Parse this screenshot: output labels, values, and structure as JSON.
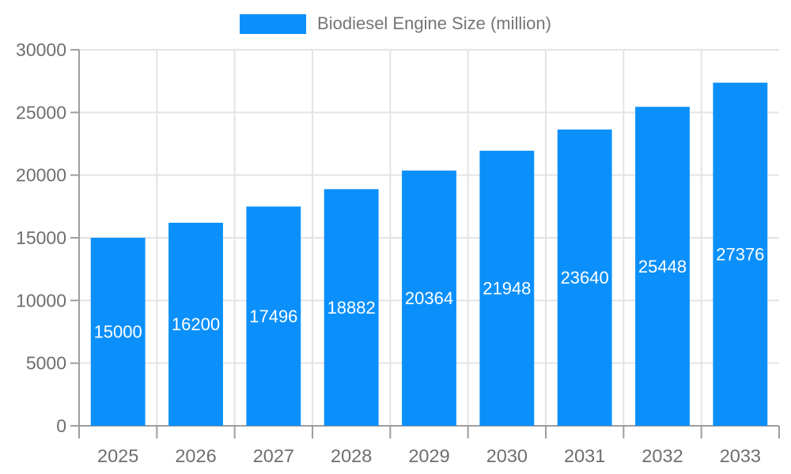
{
  "legend": {
    "label": "Biodiesel Engine Size (million)"
  },
  "chart_data": {
    "type": "bar",
    "title": "Biodiesel Engine Size (million)",
    "categories": [
      "2025",
      "2026",
      "2027",
      "2028",
      "2029",
      "2030",
      "2031",
      "2032",
      "2033"
    ],
    "values": [
      15000,
      16200,
      17496,
      18882,
      20364,
      21948,
      23640,
      25448,
      27376
    ],
    "series_name": "Biodiesel Engine Size (million)",
    "xlabel": "",
    "ylabel": "",
    "ylim": [
      0,
      30000
    ],
    "yticks": [
      0,
      5000,
      10000,
      15000,
      20000,
      25000,
      30000
    ],
    "grid": true,
    "legend_position": "top-center",
    "value_labels": "inside-center"
  },
  "colors": {
    "bar": "#0b90fb",
    "bar_value_text": "#ffffff",
    "axis_line": "#9e9e9e",
    "gridline": "#e4e4e4",
    "tick_label": "#6e6e6e",
    "legend_text": "#757575",
    "background": "#ffffff"
  }
}
